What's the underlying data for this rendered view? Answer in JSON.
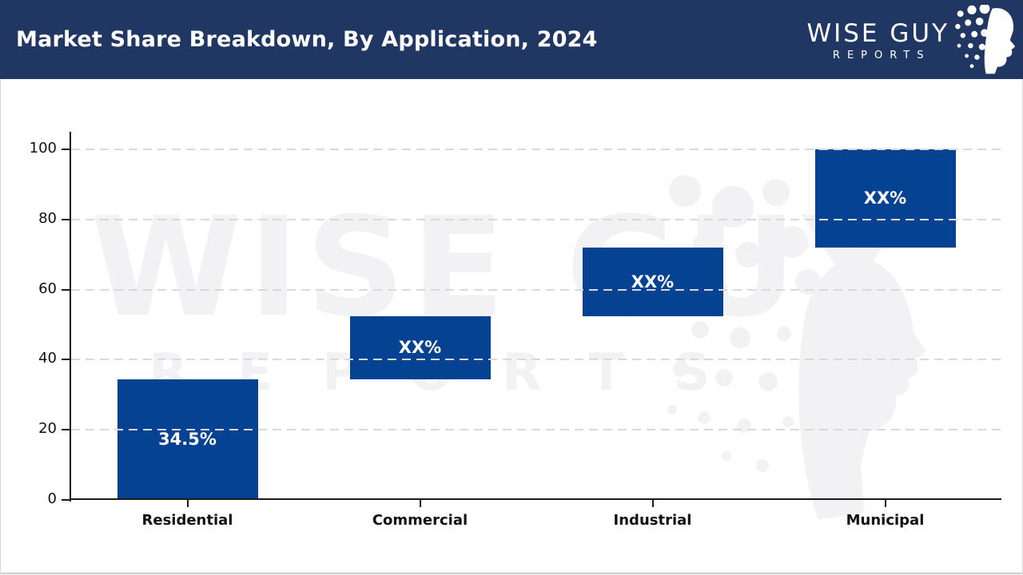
{
  "header": {
    "title": "Market Share Breakdown, By Application, 2024",
    "logo": {
      "line1": "WISE GUY",
      "line2": "REPORTS"
    }
  },
  "watermark": {
    "line1": "WISE GUY",
    "line2": "REPORTS"
  },
  "colors": {
    "header_bg": "#213763",
    "bar": "#054292",
    "grid": "#d9d9d9",
    "axis": "#1a1a1a",
    "bar_label": "#ffffff",
    "tick_text": "#111111",
    "watermark": "#f2f2f4"
  },
  "chart_data": {
    "type": "bar",
    "subtype": "waterfall",
    "title": "Market Share Breakdown, By Application, 2024",
    "categories": [
      "Residential",
      "Commercial",
      "Industrial",
      "Municipal"
    ],
    "segments": [
      {
        "category": "Residential",
        "start": 0,
        "end": 34.5,
        "label": "34.5%"
      },
      {
        "category": "Commercial",
        "start": 34.5,
        "end": 52.5,
        "label": "XX%"
      },
      {
        "category": "Industrial",
        "start": 52.5,
        "end": 72,
        "label": "XX%"
      },
      {
        "category": "Municipal",
        "start": 72,
        "end": 100,
        "label": "XX%"
      }
    ],
    "y_ticks": [
      0,
      20,
      40,
      60,
      80,
      100
    ],
    "ylim": [
      0,
      105
    ],
    "xlabel": "",
    "ylabel": "",
    "grid": "horizontal-dashed",
    "legend": "none",
    "bar_color": "#054292"
  }
}
